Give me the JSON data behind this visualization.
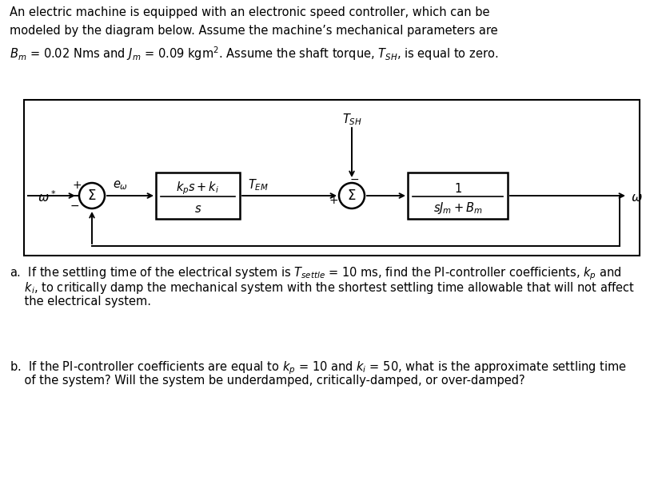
{
  "bg_color": "#ffffff",
  "text_color": "#000000",
  "font_size": 10.5,
  "para": "An electric machine is equipped with an electronic speed controller, which can be\nmodeled by the diagram below. Assume the machine’s mechanical parameters are\n$B_m$ = 0.02 Nms and $J_m$ = 0.09 kgm$^2$. Assume the shaft torque, $T_{SH}$, is equal to zero.",
  "qa_line1": "a.  If the settling time of the electrical system is $T_{settle}$ = 10 ms, find the PI-controller coefficients, $k_p$ and",
  "qa_line2": "    $k_i$, to critically damp the mechanical system with the shortest settling time allowable that will not affect",
  "qa_line3": "    the electrical system.",
  "qb_line1": "b.  If the PI-controller coefficients are equal to $k_p$ = 10 and $k_i$ = 50, what is the approximate settling time",
  "qb_line2": "    of the system? Will the system be underdamped, critically-damped, or over-damped?"
}
